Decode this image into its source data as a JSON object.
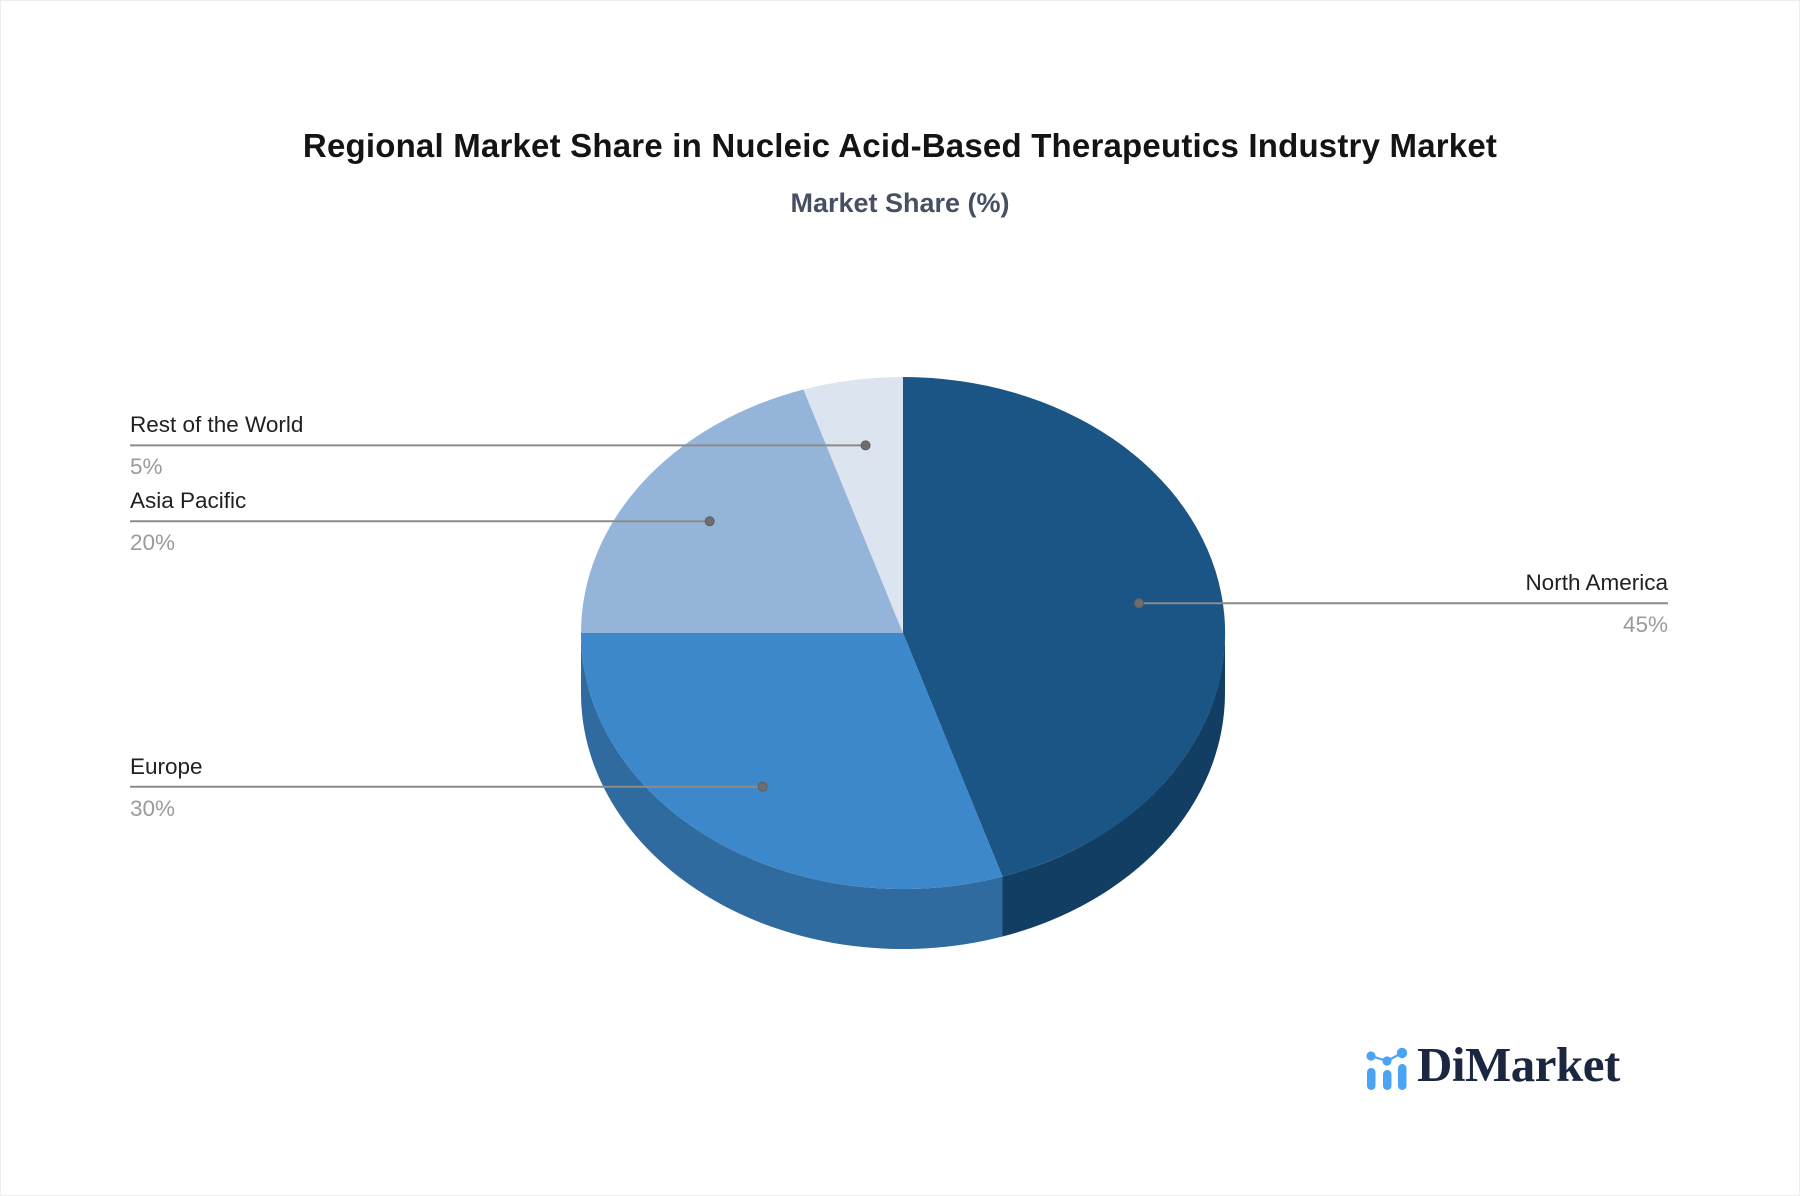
{
  "header": {
    "title": "Regional Market Share in Nucleic Acid-Based Therapeutics Industry Market",
    "subtitle": "Market Share (%)",
    "title_color": "#141414",
    "subtitle_color": "#475063"
  },
  "chart_data": {
    "type": "pie",
    "title": "Regional Market Share in Nucleic Acid-Based Therapeutics Industry Market",
    "subtitle": "Market Share (%)",
    "unit": "%",
    "start_angle": "12-oclock",
    "direction": "clockwise",
    "style": "pseudo-3d-pie-with-depth-rim",
    "legend_position": "callout-labels",
    "segments": [
      {
        "label": "North America",
        "value": 45,
        "display": "45%",
        "color": "#1A5586",
        "rim_color": "#133E63",
        "label_side": "right"
      },
      {
        "label": "Europe",
        "value": 30,
        "display": "30%",
        "color": "#3D88CA",
        "rim_color": "#2F6B9E",
        "label_side": "left"
      },
      {
        "label": "Asia Pacific",
        "value": 20,
        "display": "20%",
        "color": "#94B5D9",
        "rim_color": "#7596B8",
        "label_side": "left"
      },
      {
        "label": "Rest of the World",
        "value": 5,
        "display": "5%",
        "color": "#DCE4EF",
        "rim_color": "#B8C4D6",
        "label_side": "left"
      }
    ],
    "label_color": "#212121",
    "value_color": "#9b9b9b",
    "leader_line_color": "#8c8c8c",
    "leader_dot_color": "#6e6e6e"
  },
  "branding": {
    "logo_text": "DiMarket",
    "logo_text_color": "#1B2740",
    "icon_color": "#4BA3F5",
    "icon": "bar-chart-logo-icon"
  }
}
